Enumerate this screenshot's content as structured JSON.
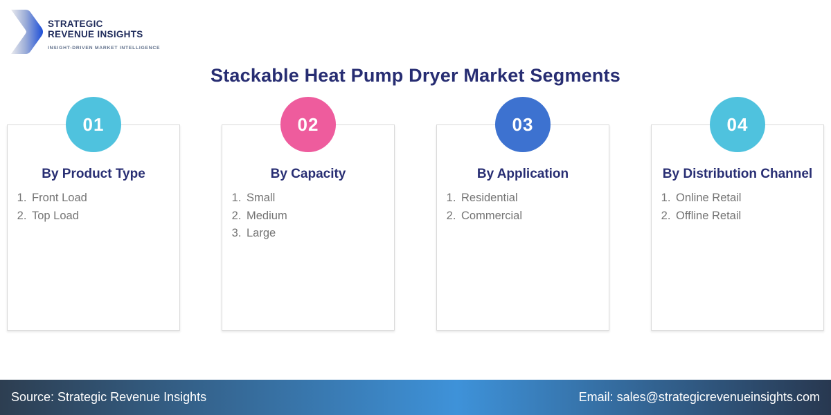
{
  "logo": {
    "name_line1": "STRATEGIC",
    "name_line2": "REVENUE INSIGHTS",
    "tagline": "INSIGHT-DRIVEN MARKET INTELLIGENCE"
  },
  "title": "Stackable Heat Pump Dryer Market Segments",
  "segments": [
    {
      "number": "01",
      "color": "#4fc2de",
      "title": "By Product Type",
      "items": [
        "Front Load",
        "Top Load"
      ]
    },
    {
      "number": "02",
      "color": "#ee5c9d",
      "title": "By Capacity",
      "items": [
        "Small",
        "Medium",
        "Large"
      ]
    },
    {
      "number": "03",
      "color": "#3d72d0",
      "title": "By Application",
      "items": [
        "Residential",
        "Commercial"
      ]
    },
    {
      "number": "04",
      "color": "#4fc2de",
      "title": "By Distribution Channel",
      "items": [
        "Online Retail",
        "Offline Retail"
      ]
    }
  ],
  "footer": {
    "source": "Source: Strategic Revenue Insights",
    "email": "Email: sales@strategicrevenueinsights.com"
  },
  "colors": {
    "title_navy": "#272d72",
    "item_gray": "#747474",
    "badge_cyan": "#4fc2de",
    "badge_pink": "#ee5c9d",
    "badge_blue": "#3d72d0",
    "footer_gradient_left": "#2d3e51",
    "footer_gradient_middle": "#3e92d9",
    "footer_gradient_right": "#283850",
    "logo_navy": "#1f2b5b"
  }
}
